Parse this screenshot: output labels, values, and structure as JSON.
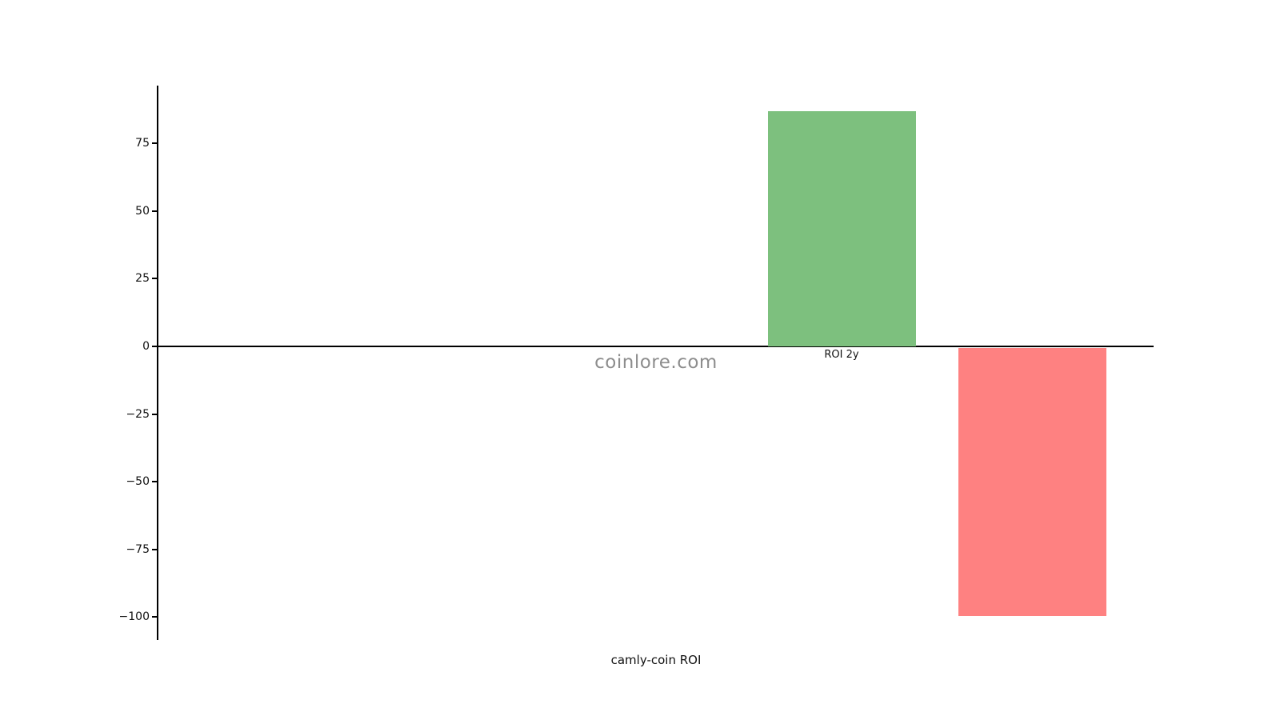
{
  "chart_data": {
    "type": "bar",
    "categories": [
      "ROI 2y",
      ""
    ],
    "values": [
      87,
      -99
    ],
    "series": [
      {
        "name": "ROI 2y",
        "value": 87,
        "color": "#7dc07e"
      },
      {
        "name": "",
        "value": -99,
        "color": "#fe8181"
      }
    ],
    "bar_colors": [
      "#7dc07e",
      "#fe8181"
    ],
    "title": "",
    "xlabel": "camly-coin ROI",
    "ylabel": "",
    "yticks": [
      75,
      50,
      25,
      0,
      -25,
      -50,
      -75,
      -100
    ],
    "ylim": [
      -108,
      96
    ],
    "grid": false,
    "legend": false,
    "axis_color": "#000000",
    "tick_label_color": "#111111",
    "watermark": "coinlore.com",
    "watermark_color": "#8d8d8d"
  }
}
